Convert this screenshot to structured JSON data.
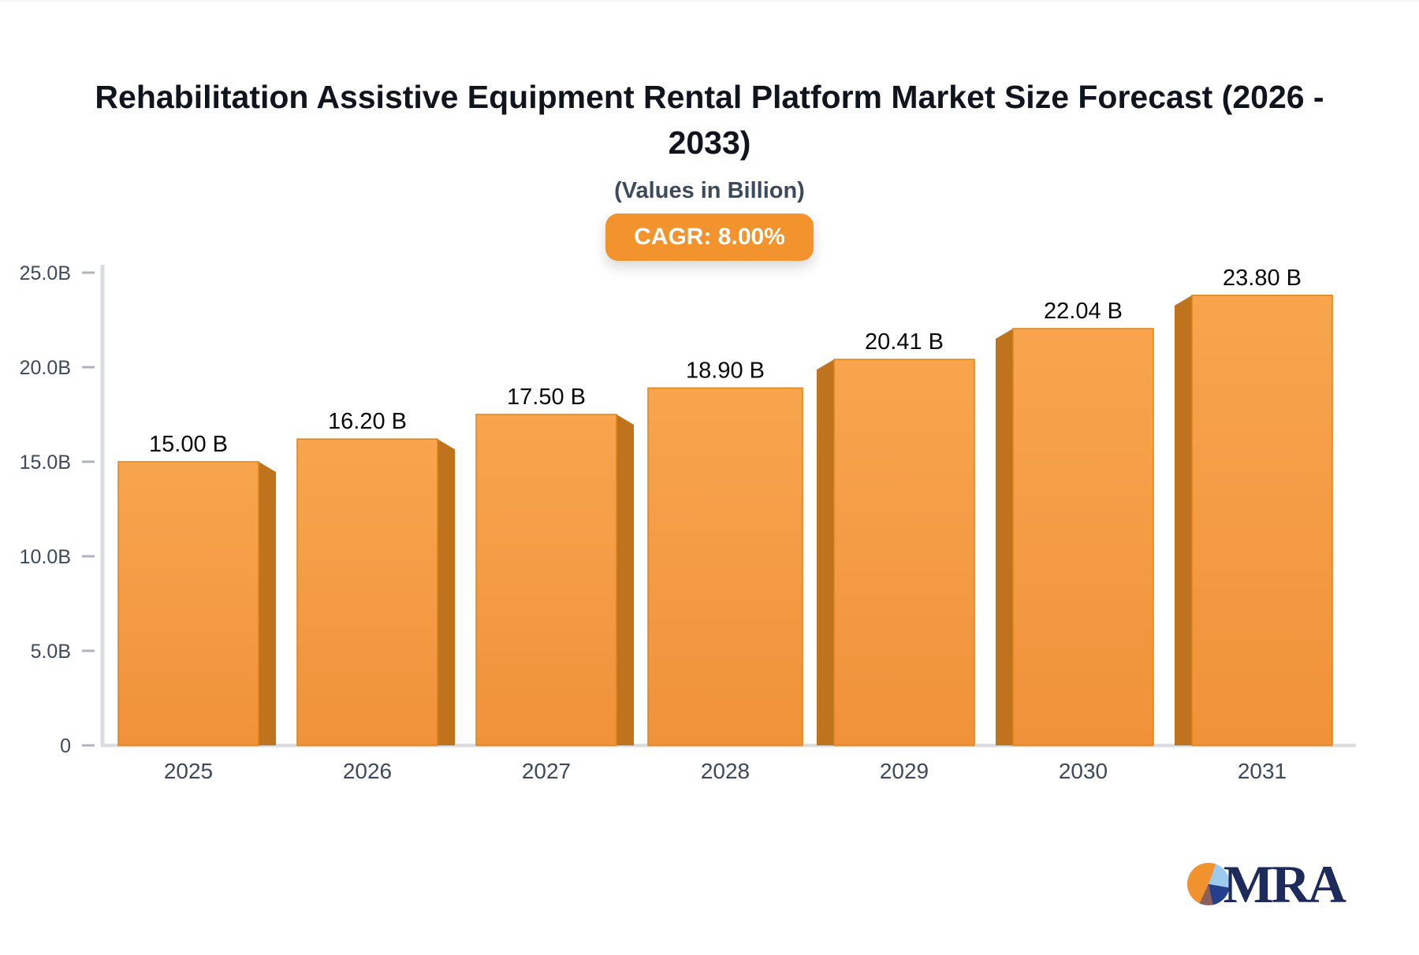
{
  "header": {
    "title": "Rehabilitation Assistive Equipment Rental Platform Market Size Forecast (2026 -\n2033)",
    "subtitle": "(Values in Billion)",
    "cagr_badge": "CAGR: 8.00%"
  },
  "chart_data": {
    "type": "bar",
    "title": "Rehabilitation Assistive Equipment Rental Platform Market Size Forecast (2026 - 2033)",
    "subtitle": "(Values in Billion)",
    "cagr": "8.00%",
    "categories": [
      "2025",
      "2026",
      "2027",
      "2028",
      "2029",
      "2030",
      "2031"
    ],
    "values": [
      15.0,
      16.2,
      17.5,
      18.9,
      20.41,
      22.04,
      23.8
    ],
    "value_labels": [
      "15.00 B",
      "16.20 B",
      "17.50 B",
      "18.90 B",
      "20.41 B",
      "22.04 B",
      "23.80 B"
    ],
    "unit": "Billion",
    "ylim": [
      0,
      25
    ],
    "ytick_step": 5,
    "ytick_labels": [
      "0",
      "5.0B",
      "10.0B",
      "15.0B",
      "20.0B",
      "25.0B"
    ],
    "grid": false,
    "legend": "none",
    "colors": {
      "bar_top": "#F8A54E",
      "bar_bottom": "#F0923A",
      "bar_side": "#BF731D",
      "bar_outline": "#DB831A",
      "axis_line": "#DADCE0",
      "tick_dash": "#AEB4BD",
      "axis_text": "#3D4A5C",
      "value_text": "#0A0A0A",
      "badge": "#F2932D"
    }
  },
  "logo": {
    "text": "MRA",
    "pie_colors": [
      "#F0932F",
      "#9CCBEE",
      "#24408C",
      "#8C5F5F"
    ],
    "text_color": "#1C2A5C"
  }
}
